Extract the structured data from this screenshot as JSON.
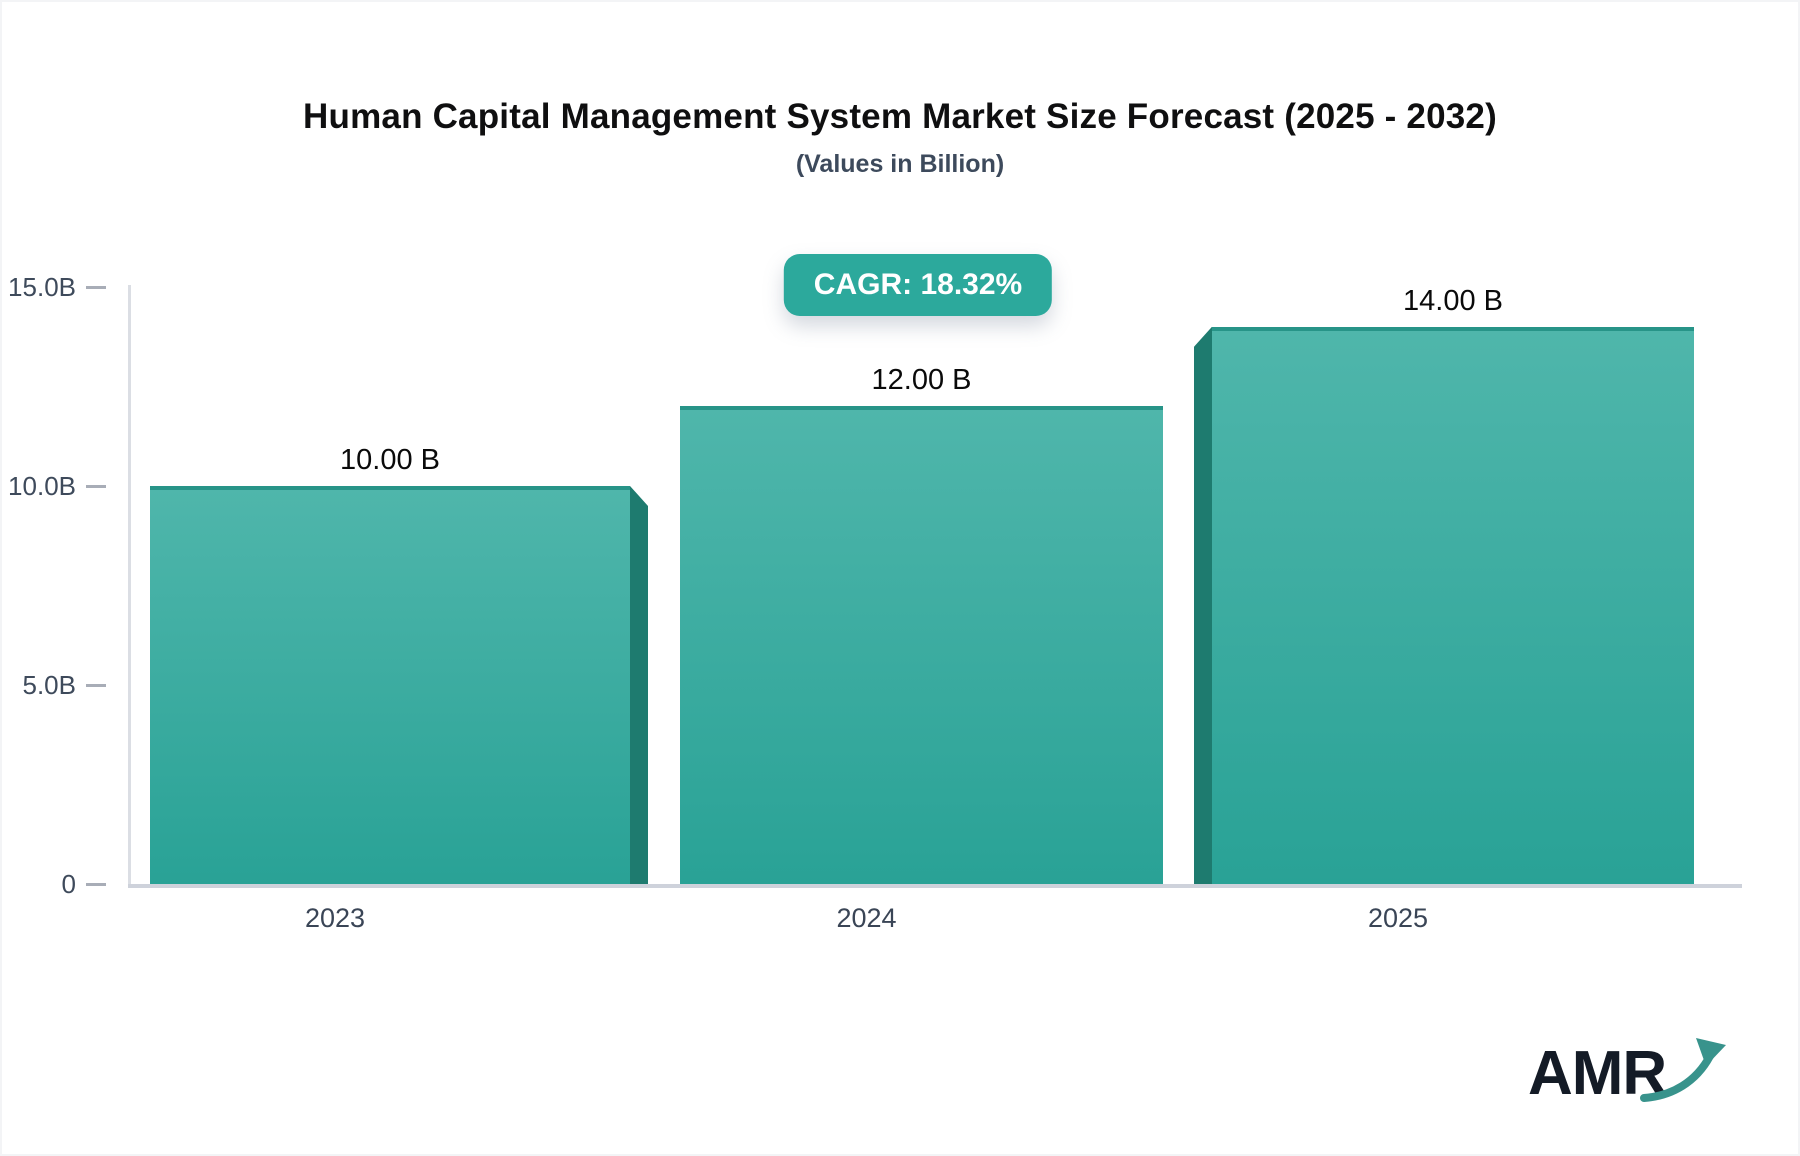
{
  "header": {
    "title": "Human Capital Management System Market Size Forecast (2025 - 2032)",
    "subtitle": "(Values in Billion)"
  },
  "badge": {
    "label": "CAGR: 18.32%",
    "bg_color": "#2CA99C",
    "text_color": "#FFFFFF"
  },
  "logo": {
    "text": "AMR",
    "icon": "growth-arrow-icon",
    "text_color": "#141B26",
    "arrow_color": "#38938C"
  },
  "colors": {
    "bar_gradient_top": "#4FB6AB",
    "bar_gradient_bottom": "#29A296",
    "bar_top_edge": "#279488",
    "bar_side_face": "#1E7B6F",
    "y_axis_line": "#DBDEE4",
    "x_axis_line": "#CED2DB",
    "tick_mark": "#A8ADB7",
    "tick_label": "#3E4A5B"
  },
  "chart_data": {
    "type": "bar",
    "title": "Human Capital Management System Market Size Forecast (2025 - 2032)",
    "subtitle": "(Values in Billion)",
    "categories": [
      "2023",
      "2024",
      "2025"
    ],
    "values": [
      10,
      12,
      14
    ],
    "value_labels": [
      "10.00 B",
      "12.00 B",
      "14.00 B"
    ],
    "xlabel": "",
    "ylabel": "",
    "ylim": [
      0,
      15
    ],
    "yticks": [
      {
        "label": "15.0B",
        "value": 15
      },
      {
        "label": "10.0B",
        "value": 10
      },
      {
        "label": "5.0B",
        "value": 5
      },
      {
        "label": "0",
        "value": 0
      }
    ],
    "grid": false,
    "legend": false,
    "annotation": "CAGR: 18.32%",
    "bar_style": "3d-teal-gradient"
  }
}
